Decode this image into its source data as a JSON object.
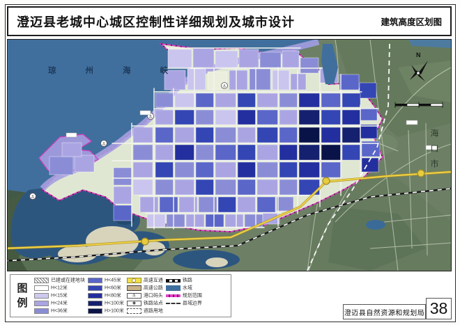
{
  "header": {
    "title": "澄迈县老城中心城区控制性详细规划及城市设计",
    "subtitle": "建筑高度区划图"
  },
  "legend": {
    "title_chars": [
      "图",
      "例"
    ],
    "columns": [
      {
        "items": [
          {
            "label": "已建或在建地块",
            "type": "hatch"
          },
          {
            "label": "H<12米",
            "type": "solid",
            "color": "#ffffff"
          },
          {
            "label": "H<15米",
            "type": "solid",
            "color": "#cdc9ef"
          },
          {
            "label": "H<24米",
            "type": "solid",
            "color": "#aaa5e2"
          },
          {
            "label": "H<36米",
            "type": "solid",
            "color": "#8a8dd6"
          }
        ]
      },
      {
        "items": [
          {
            "label": "H<45米",
            "type": "solid",
            "color": "#5a66c8"
          },
          {
            "label": "H<60米",
            "type": "solid",
            "color": "#3445b4"
          },
          {
            "label": "H<80米",
            "type": "solid",
            "color": "#232f9e"
          },
          {
            "label": "H<100米",
            "type": "solid",
            "color": "#15206e"
          },
          {
            "label": "H>100米",
            "type": "solid",
            "color": "#0a1348"
          }
        ]
      },
      {
        "items": [
          {
            "label": "高速互通",
            "type": "interchange"
          },
          {
            "label": "高速公路",
            "type": "expressway"
          },
          {
            "label": "港口码头",
            "type": "anchor",
            "glyph": "⚓"
          },
          {
            "label": "铁路站点",
            "type": "station",
            "glyph": "◉"
          },
          {
            "label": "道路用地",
            "type": "roadland"
          }
        ]
      },
      {
        "items": [
          {
            "label": "铁路",
            "type": "rail"
          },
          {
            "label": "水域",
            "type": "water"
          },
          {
            "label": "规划范围",
            "type": "boundary"
          },
          {
            "label": "县域边界",
            "type": "countyline"
          }
        ]
      }
    ]
  },
  "map": {
    "sea_label": "琼州海峡",
    "city_label": "海口市",
    "compass_label": "N",
    "icons": {
      "anchor": "⚓"
    },
    "palette": [
      "#eceedd",
      "#c9c5ee",
      "#aaa5e2",
      "#8a8dd6",
      "#5a66c8",
      "#3445b4",
      "#232f9e",
      "#15206e",
      "#0a1348"
    ],
    "colors": {
      "sea": "#416f9d",
      "land": "#6d8066",
      "planning_bg": "#dfe7d2",
      "planning_boundary": "#d93cc0",
      "expressway": "#e8cb3e",
      "inland_water": "#2d567f",
      "road": "#f4f5ef"
    },
    "parcels": [
      [
        225,
        44,
        30,
        28,
        2
      ],
      [
        258,
        42,
        26,
        30,
        1
      ],
      [
        287,
        46,
        28,
        26,
        0
      ],
      [
        318,
        44,
        26,
        28,
        2
      ],
      [
        347,
        42,
        30,
        30,
        3
      ],
      [
        380,
        44,
        24,
        28,
        1
      ],
      [
        406,
        49,
        22,
        23,
        2
      ],
      [
        230,
        14,
        34,
        26,
        1
      ],
      [
        266,
        12,
        30,
        28,
        2
      ],
      [
        298,
        16,
        32,
        24,
        1
      ],
      [
        332,
        14,
        28,
        26,
        2
      ],
      [
        362,
        18,
        30,
        22,
        3
      ],
      [
        394,
        16,
        24,
        24,
        2
      ],
      [
        420,
        26,
        26,
        22,
        3
      ],
      [
        448,
        40,
        26,
        22,
        2
      ],
      [
        476,
        50,
        28,
        22,
        4
      ],
      [
        505,
        62,
        24,
        22,
        5
      ],
      [
        212,
        77,
        26,
        20,
        3
      ],
      [
        240,
        77,
        28,
        20,
        1
      ],
      [
        270,
        77,
        26,
        20,
        4
      ],
      [
        298,
        77,
        30,
        20,
        2
      ],
      [
        330,
        77,
        26,
        20,
        5
      ],
      [
        358,
        77,
        30,
        20,
        2
      ],
      [
        390,
        77,
        26,
        20,
        3
      ],
      [
        418,
        77,
        30,
        20,
        6
      ],
      [
        450,
        77,
        28,
        20,
        4
      ],
      [
        480,
        77,
        26,
        20,
        5
      ],
      [
        212,
        101,
        26,
        21,
        2
      ],
      [
        240,
        101,
        28,
        21,
        5
      ],
      [
        270,
        101,
        26,
        21,
        3
      ],
      [
        298,
        101,
        30,
        21,
        1
      ],
      [
        330,
        101,
        26,
        21,
        6
      ],
      [
        358,
        101,
        30,
        21,
        4
      ],
      [
        390,
        101,
        26,
        21,
        2
      ],
      [
        418,
        101,
        30,
        21,
        7
      ],
      [
        450,
        101,
        28,
        21,
        5
      ],
      [
        480,
        101,
        26,
        21,
        6
      ],
      [
        506,
        98,
        24,
        18,
        4
      ],
      [
        180,
        126,
        28,
        22,
        2
      ],
      [
        212,
        126,
        26,
        22,
        4
      ],
      [
        240,
        126,
        28,
        22,
        2
      ],
      [
        270,
        126,
        26,
        22,
        5
      ],
      [
        298,
        126,
        30,
        22,
        3
      ],
      [
        330,
        126,
        26,
        22,
        2
      ],
      [
        358,
        126,
        30,
        22,
        5
      ],
      [
        390,
        126,
        26,
        22,
        4
      ],
      [
        418,
        126,
        30,
        22,
        8
      ],
      [
        450,
        126,
        28,
        22,
        6
      ],
      [
        480,
        126,
        26,
        22,
        7
      ],
      [
        506,
        122,
        24,
        20,
        6
      ],
      [
        180,
        151,
        28,
        22,
        3
      ],
      [
        212,
        151,
        26,
        22,
        2
      ],
      [
        240,
        151,
        28,
        22,
        6
      ],
      [
        270,
        151,
        26,
        22,
        3
      ],
      [
        298,
        151,
        30,
        22,
        4
      ],
      [
        330,
        151,
        26,
        22,
        5
      ],
      [
        358,
        151,
        30,
        22,
        2
      ],
      [
        390,
        151,
        26,
        22,
        6
      ],
      [
        418,
        151,
        30,
        22,
        7
      ],
      [
        450,
        151,
        28,
        22,
        8
      ],
      [
        480,
        151,
        26,
        22,
        5
      ],
      [
        180,
        176,
        28,
        22,
        2
      ],
      [
        212,
        176,
        26,
        22,
        5
      ],
      [
        240,
        176,
        28,
        22,
        3
      ],
      [
        270,
        176,
        26,
        22,
        4
      ],
      [
        298,
        176,
        30,
        22,
        2
      ],
      [
        330,
        176,
        26,
        22,
        6
      ],
      [
        358,
        176,
        30,
        22,
        3
      ],
      [
        390,
        176,
        26,
        22,
        5
      ],
      [
        418,
        176,
        30,
        22,
        6
      ],
      [
        450,
        176,
        28,
        22,
        4
      ],
      [
        180,
        201,
        28,
        22,
        1
      ],
      [
        212,
        201,
        26,
        22,
        3
      ],
      [
        240,
        201,
        28,
        22,
        2
      ],
      [
        270,
        201,
        26,
        22,
        5
      ],
      [
        298,
        201,
        30,
        22,
        3
      ],
      [
        330,
        201,
        26,
        22,
        4
      ],
      [
        358,
        201,
        30,
        22,
        2
      ],
      [
        390,
        201,
        26,
        22,
        3
      ],
      [
        418,
        201,
        30,
        22,
        5
      ],
      [
        190,
        226,
        26,
        22,
        2
      ],
      [
        218,
        226,
        26,
        22,
        4
      ],
      [
        246,
        226,
        26,
        22,
        2
      ],
      [
        274,
        226,
        26,
        22,
        3
      ],
      [
        302,
        226,
        26,
        22,
        5
      ],
      [
        330,
        226,
        26,
        22,
        2
      ],
      [
        358,
        226,
        26,
        22,
        4
      ],
      [
        386,
        226,
        24,
        20,
        3
      ],
      [
        200,
        251,
        26,
        18,
        1
      ],
      [
        228,
        251,
        26,
        18,
        3
      ],
      [
        256,
        251,
        26,
        18,
        2
      ],
      [
        284,
        251,
        26,
        18,
        4
      ],
      [
        312,
        251,
        26,
        18,
        2
      ],
      [
        340,
        251,
        26,
        18,
        3
      ],
      [
        366,
        249,
        24,
        16,
        2
      ],
      [
        152,
        184,
        26,
        25,
        3
      ],
      [
        152,
        211,
        26,
        25,
        2
      ],
      [
        152,
        238,
        26,
        22,
        4
      ],
      [
        60,
        168,
        34,
        26,
        3
      ],
      [
        96,
        166,
        28,
        24,
        2
      ],
      [
        78,
        148,
        28,
        20,
        2
      ],
      [
        508,
        146,
        26,
        22,
        4
      ],
      [
        508,
        170,
        24,
        20,
        6
      ]
    ],
    "grid": {
      "v": [
        [
          178,
          120,
          268
        ],
        [
          210,
          70,
          272
        ],
        [
          238,
          70,
          272
        ],
        [
          268,
          42,
          272
        ],
        [
          296,
          42,
          272
        ],
        [
          328,
          40,
          270
        ],
        [
          356,
          40,
          270
        ],
        [
          388,
          40,
          268
        ],
        [
          416,
          44,
          250
        ],
        [
          448,
          40,
          240
        ],
        [
          478,
          50,
          224
        ],
        [
          506,
          94,
          196
        ]
      ],
      "h": [
        [
          12,
          228,
          420
        ],
        [
          41,
          225,
          452
        ],
        [
          75,
          210,
          508
        ],
        [
          99,
          210,
          532
        ],
        [
          124,
          178,
          532
        ],
        [
          149,
          150,
          532
        ],
        [
          174,
          150,
          480
        ],
        [
          199,
          150,
          448
        ],
        [
          224,
          188,
          438
        ],
        [
          249,
          198,
          392
        ],
        [
          270,
          200,
          368
        ]
      ]
    }
  },
  "footer": {
    "credit": "澄迈县自然资源和规划局",
    "page": "38"
  }
}
